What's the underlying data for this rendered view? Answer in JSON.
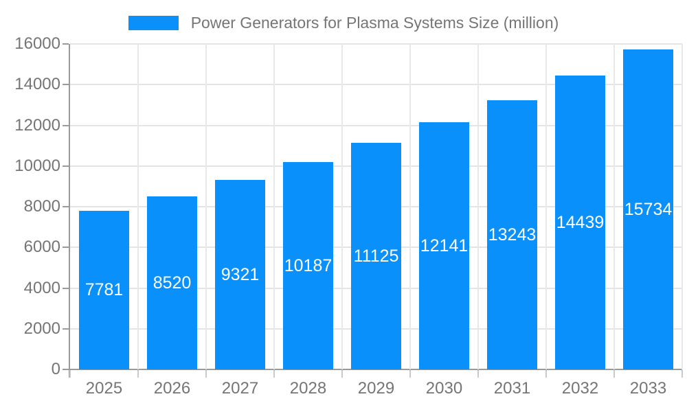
{
  "chart_data": {
    "type": "bar",
    "title": "Power Generators for Plasma Systems Size (million)",
    "categories": [
      "2025",
      "2026",
      "2027",
      "2028",
      "2029",
      "2030",
      "2031",
      "2032",
      "2033"
    ],
    "values": [
      7781,
      8520,
      9321,
      10187,
      11125,
      12141,
      13243,
      14439,
      15734
    ],
    "xlabel": "",
    "ylabel": "",
    "ylim": [
      0,
      16000
    ],
    "ytick_step": 2000,
    "grid": true,
    "legend_position": "top-center",
    "value_labels": "inside-center",
    "colors": {
      "bar": "#0990fb",
      "value_label": "#ffffff",
      "axis_text": "#757575",
      "axis_line": "#9a9a9a",
      "gridline": "#e4e4e4",
      "background": "#ffffff"
    }
  }
}
